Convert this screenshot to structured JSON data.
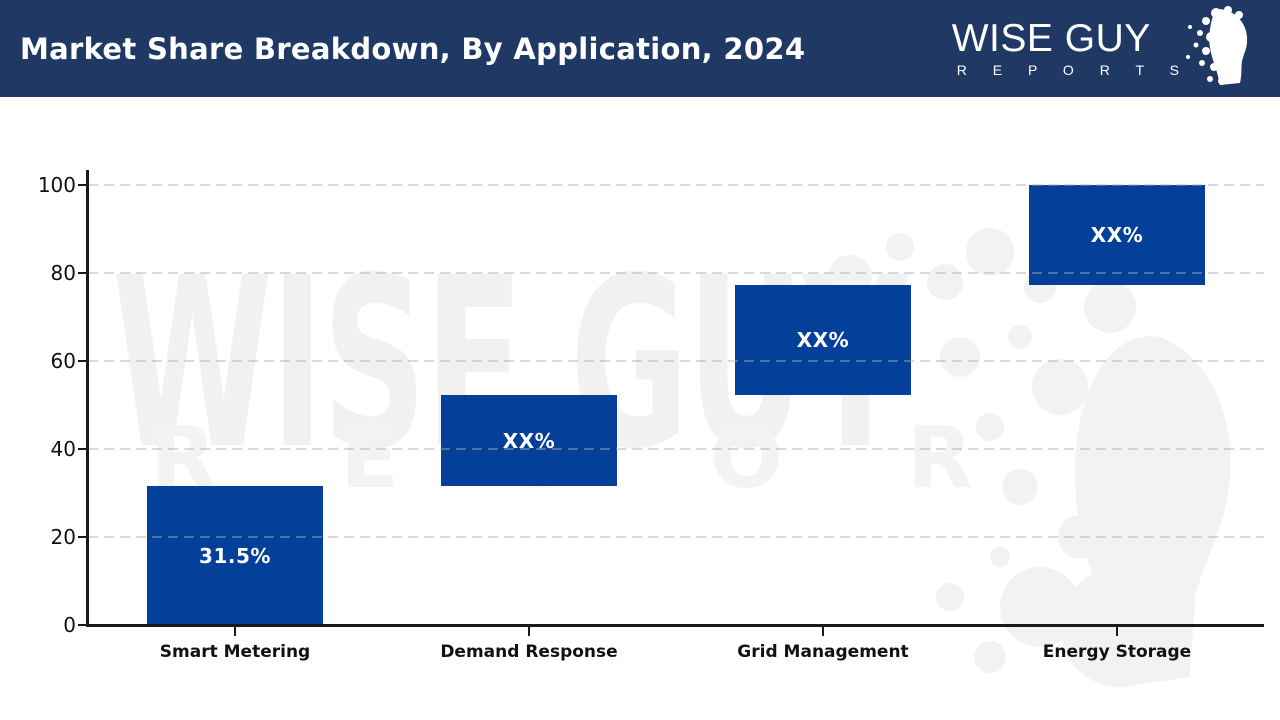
{
  "header": {
    "title": "Market Share Breakdown, By Application, 2024",
    "logo": {
      "line1": "WISE GUY",
      "line2": "R E P O R T S"
    }
  },
  "watermark": {
    "line1": "WISE GUY",
    "line2": "R E P O R T S"
  },
  "colors": {
    "header_bg": "#1f3864",
    "bar": "#04409a",
    "grid": "#bdbdbd",
    "axis": "#1a1a1a",
    "watermark": "#f1f1f2"
  },
  "chart_data": {
    "type": "bar",
    "subtype": "waterfall",
    "title": "Market Share Breakdown, By Application, 2024",
    "xlabel": "",
    "ylabel": "",
    "categories": [
      "Smart Metering",
      "Demand Response",
      "Grid Management",
      "Energy Storage"
    ],
    "segments": [
      {
        "category": "Smart Metering",
        "start": 0,
        "end": 31.5,
        "label": "31.5%"
      },
      {
        "category": "Demand Response",
        "start": 31.5,
        "end": 52.3,
        "label": "XX%"
      },
      {
        "category": "Grid Management",
        "start": 52.3,
        "end": 77.3,
        "label": "XX%"
      },
      {
        "category": "Energy Storage",
        "start": 77.3,
        "end": 100,
        "label": "XX%"
      }
    ],
    "yticks": [
      0,
      20,
      40,
      60,
      80,
      100
    ],
    "ylim": [
      0,
      103.5
    ],
    "grid": "horizontal dashed, drawn over bars",
    "legend": "none"
  }
}
